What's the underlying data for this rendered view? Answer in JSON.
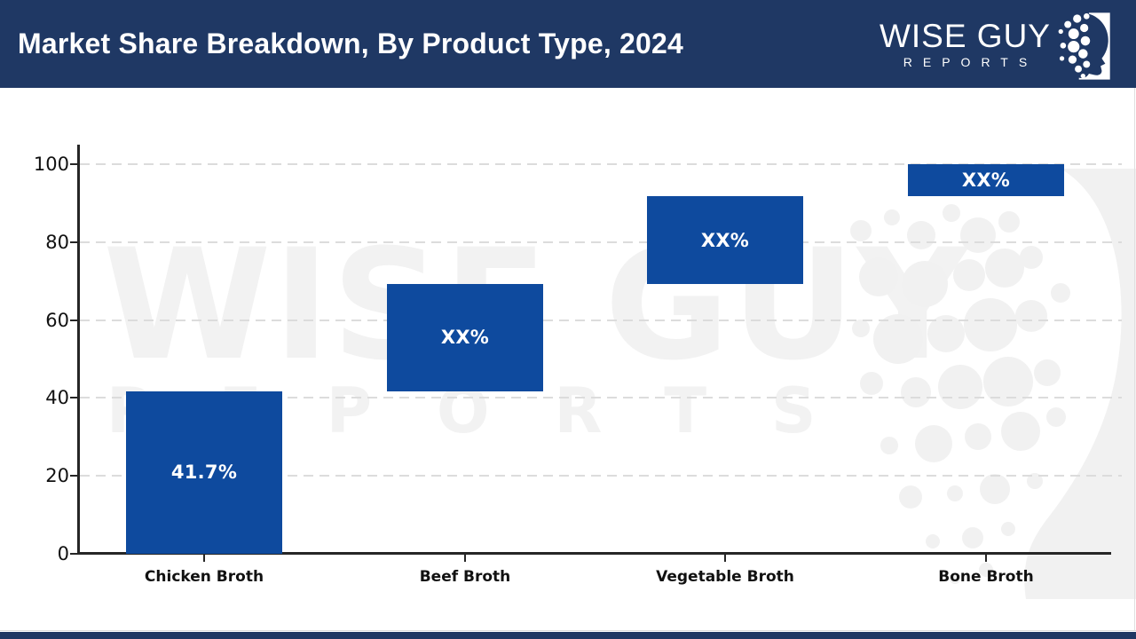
{
  "header": {
    "title": "Market Share Breakdown, By Product Type, 2024",
    "logo": {
      "line1": "WISE GUY",
      "line2": "REPORTS"
    }
  },
  "watermark": {
    "line1": "WISE GUY",
    "line2": "REPORTS"
  },
  "chart_data": {
    "type": "bar",
    "variant": "waterfall",
    "title": "Market Share Breakdown, By Product Type, 2024",
    "categories": [
      "Chicken Broth",
      "Beef Broth",
      "Vegetable Broth",
      "Bone Broth"
    ],
    "segments": [
      {
        "category": "Chicken Broth",
        "start": 0,
        "end": 41.7,
        "label": "41.7%"
      },
      {
        "category": "Beef Broth",
        "start": 41.7,
        "end": 69.3,
        "label": "XX%"
      },
      {
        "category": "Vegetable Broth",
        "start": 69.3,
        "end": 91.7,
        "label": "XX%"
      },
      {
        "category": "Bone Broth",
        "start": 91.7,
        "end": 100,
        "label": "XX%"
      }
    ],
    "xlabel": "",
    "ylabel": "",
    "yticks": [
      0,
      20,
      40,
      60,
      80,
      100
    ],
    "ylim": [
      0,
      100
    ],
    "grid": "horizontal-dashed",
    "legend": "none",
    "colors": {
      "bar": "#0e4a9e",
      "bar_label": "#ffffff",
      "header_navy": "#1f3864",
      "axis": "#262626",
      "gridline": "#dcdcdc",
      "watermark": "#f2f2f2"
    }
  }
}
